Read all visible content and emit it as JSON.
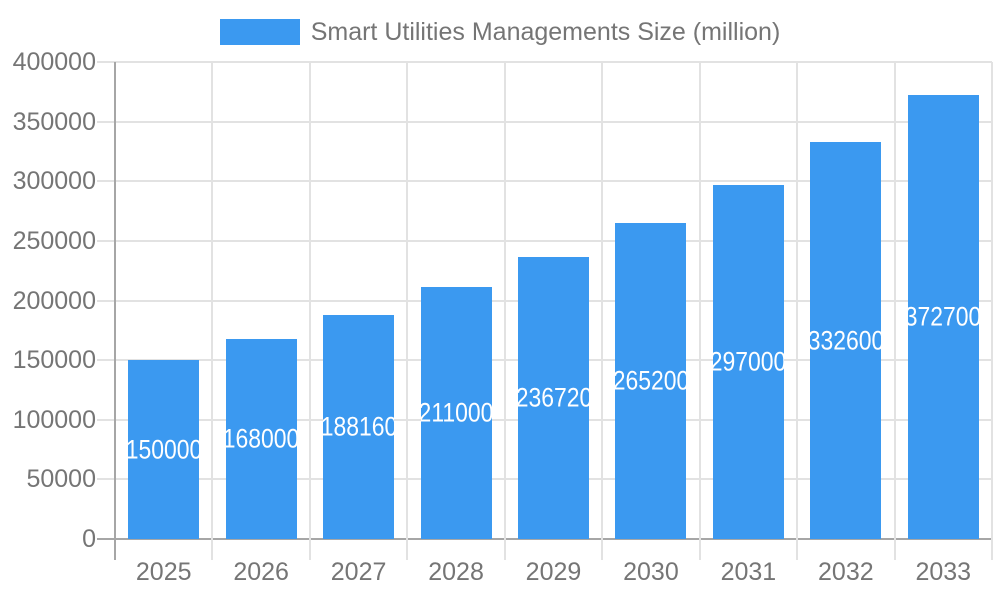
{
  "chart_data": {
    "type": "bar",
    "title": "Smart Utilities Managements Size (million)",
    "categories": [
      "2025",
      "2026",
      "2027",
      "2028",
      "2029",
      "2030",
      "2031",
      "2032",
      "2033"
    ],
    "values": [
      150000,
      168000,
      188160,
      211000,
      236720,
      265200,
      297000,
      332600,
      372700
    ],
    "bar_labels": [
      "150000",
      "168000",
      "188160",
      "211000",
      "236720",
      "265200",
      "297000",
      "332600",
      "372700"
    ],
    "xlabel": "",
    "ylabel": "",
    "ylim": [
      0,
      400000
    ],
    "ytick_step": 50000,
    "ytick_labels": [
      "0",
      "50000",
      "100000",
      "150000",
      "200000",
      "250000",
      "300000",
      "350000",
      "400000"
    ],
    "legend_position": "top",
    "grid": true,
    "colors": {
      "bar": "#3b99f0",
      "bar_label_text": "#ffffff",
      "axis_text": "#757575",
      "grid_line": "#e2e2e2",
      "axis_line": "#a6a6a6",
      "background": "#ffffff"
    }
  }
}
